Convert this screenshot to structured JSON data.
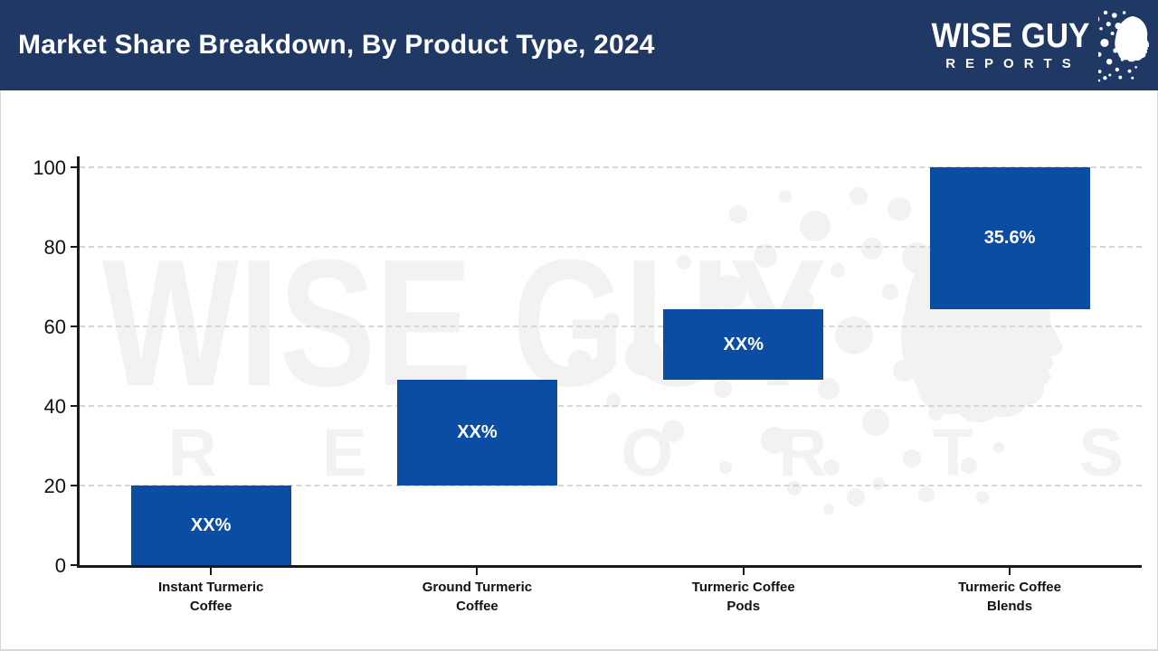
{
  "header": {
    "title": "Market Share Breakdown, By Product Type, 2024",
    "logo": {
      "name": "WISE GUY",
      "subtitle": "REPORTS"
    }
  },
  "watermark": {
    "name": "WISE GUY",
    "subtitle": "R E P O R T S"
  },
  "chart_data": {
    "type": "bar",
    "subtype": "waterfall",
    "title": "Market Share Breakdown, By Product Type, 2024",
    "categories": [
      "Instant Turmeric\nCoffee",
      "Ground Turmeric\nCoffee",
      "Turmeric Coffee\nPods",
      "Turmeric Coffee\nBlends"
    ],
    "bar_labels": [
      "XX%",
      "XX%",
      "XX%",
      "35.6%"
    ],
    "segments": [
      {
        "category": "Instant Turmeric Coffee",
        "start": 0,
        "end": 20,
        "label": "XX%"
      },
      {
        "category": "Ground Turmeric Coffee",
        "start": 20,
        "end": 46.5,
        "label": "XX%"
      },
      {
        "category": "Turmeric Coffee Pods",
        "start": 46.5,
        "end": 64.4,
        "label": "XX%"
      },
      {
        "category": "Turmeric Coffee Blends",
        "start": 64.4,
        "end": 100,
        "label": "35.6%"
      }
    ],
    "values_estimated": [
      20,
      26.5,
      17.9,
      35.6
    ],
    "ylim": [
      0,
      100
    ],
    "yticks": [
      0,
      20,
      40,
      60,
      80,
      100
    ],
    "grid": "horizontal-dashed",
    "legend": "none",
    "colors": {
      "bar": "#0B4DA2",
      "bar_label": "#FFFFFF",
      "header_bg": "#1F3864",
      "watermark": "#F2F2F2",
      "gridline": "#D6D6D6",
      "axis": "#1A1A1A"
    }
  }
}
